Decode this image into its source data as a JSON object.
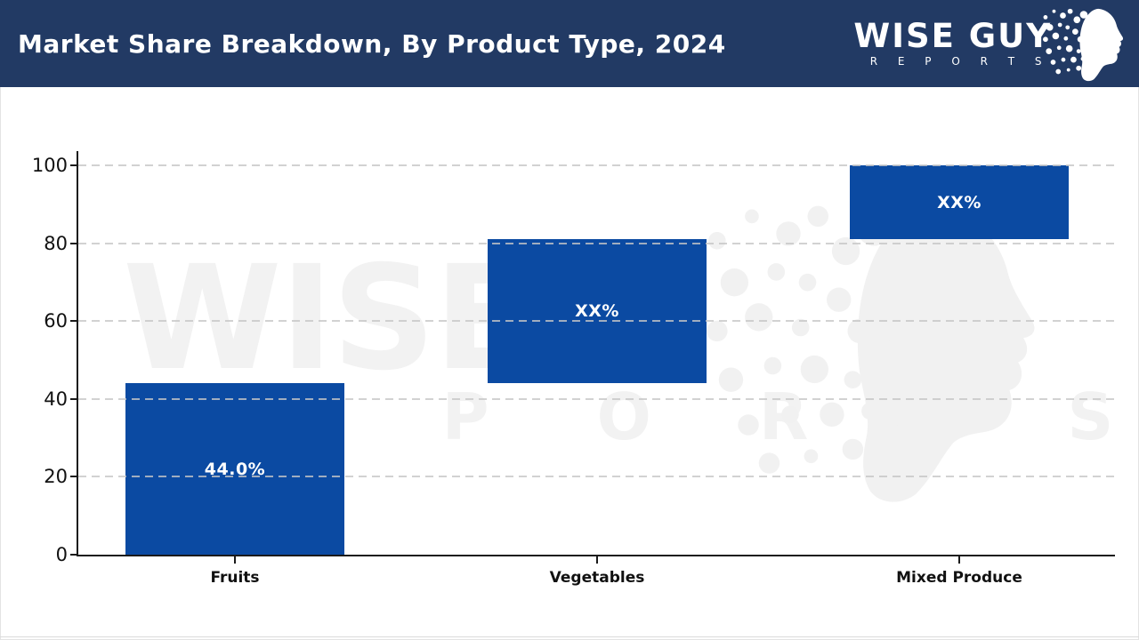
{
  "header": {
    "title": "Market Share Breakdown, By Product Type, 2024",
    "logo": {
      "line1": "WISE GUY",
      "line2": "R E P O R T S"
    }
  },
  "watermark": {
    "line1": "WISE",
    "line2": "R E P O R T S"
  },
  "chart_data": {
    "type": "bar",
    "subtype": "waterfall",
    "title": "Market Share Breakdown, By Product Type, 2024",
    "categories": [
      "Fruits",
      "Vegetables",
      "Mixed Produce"
    ],
    "bars": [
      {
        "category": "Fruits",
        "start": 0,
        "end": 44,
        "label": "44.0%"
      },
      {
        "category": "Vegetables",
        "start": 44,
        "end": 81,
        "label": "XX%"
      },
      {
        "category": "Mixed Produce",
        "start": 81,
        "end": 100,
        "label": "XX%"
      }
    ],
    "xlabel": "",
    "ylabel": "",
    "ylim": [
      0,
      100
    ],
    "yticks": [
      0,
      20,
      40,
      60,
      80,
      100
    ],
    "grid": "horizontal-dashed",
    "legend": "none",
    "bar_color": "#0B4AA2",
    "bar_label_color": "#FFFFFF",
    "header_color": "#223A64",
    "watermark_color": "#F2F2F2"
  }
}
